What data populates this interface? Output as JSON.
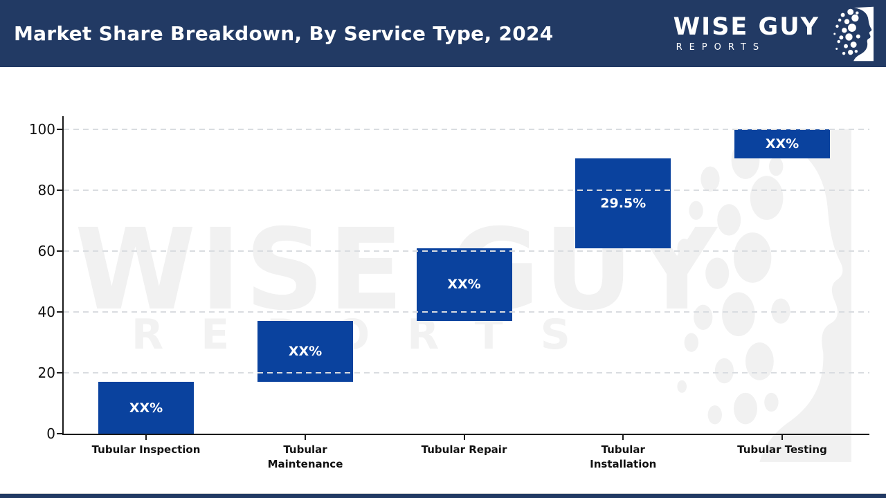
{
  "header": {
    "title": "Market Share Breakdown, By Service Type, 2024",
    "logo": {
      "line1": "WISE GUY",
      "line2": "REPORTS"
    }
  },
  "watermark": {
    "line1": "WISE GUY",
    "line2": "REPORTS"
  },
  "colors": {
    "header_bg": "#223a64",
    "bar_fill": "#0a429e",
    "bar_label_text": "#ffffff",
    "gridline": "#d9dce0",
    "axis": "#1a1a1a",
    "watermark": "#f1f1f1"
  },
  "chart_data": {
    "type": "bar",
    "subtype": "floating-waterfall",
    "title": "Market Share Breakdown, By Service Type, 2024",
    "categories": [
      "Tubular Inspection",
      "Tubular Maintenance",
      "Tubular Repair",
      "Tubular Installation",
      "Tubular Testing"
    ],
    "xtick_lines": [
      [
        "Tubular Inspection"
      ],
      [
        "Tubular",
        "Maintenance"
      ],
      [
        "Tubular Repair"
      ],
      [
        "Tubular",
        "Installation"
      ],
      [
        "Tubular Testing"
      ]
    ],
    "series": [
      {
        "starts": [
          0,
          17,
          37,
          61,
          90.5
        ],
        "ends": [
          17,
          37,
          61,
          90.5,
          100
        ],
        "values": [
          17,
          20,
          24,
          29.5,
          9.5
        ]
      }
    ],
    "bar_labels": [
      "XX%",
      "XX%",
      "XX%",
      "29.5%",
      "XX%"
    ],
    "xlabel": "",
    "ylabel": "",
    "yticks": [
      0,
      20,
      40,
      60,
      80,
      100
    ],
    "ylim": [
      0,
      105
    ],
    "grid": "horizontal dashed, drawn above bars",
    "legend": "none"
  }
}
